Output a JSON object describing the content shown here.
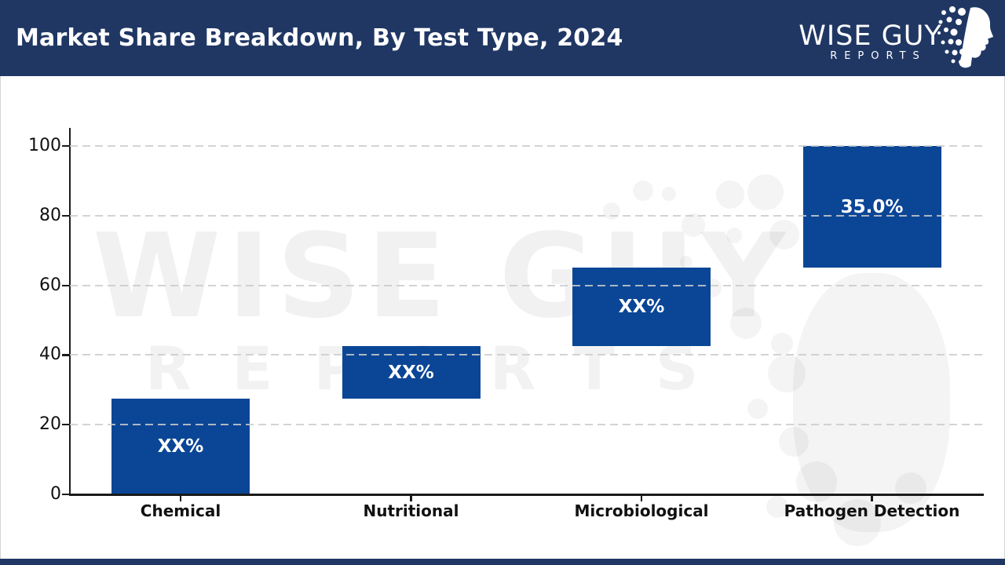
{
  "header": {
    "title": "Market Share Breakdown, By Test Type, 2024",
    "bg_color": "#203764",
    "logo": {
      "line1": "WISE GUY",
      "line2": "REPORTS"
    }
  },
  "watermark": {
    "line1": "WISE GUY",
    "line2": "REPORTS"
  },
  "chart_data": {
    "type": "bar",
    "subtype": "waterfall",
    "title": "Market Share Breakdown, By Test Type, 2024",
    "categories": [
      "Chemical",
      "Nutritional",
      "Microbiological",
      "Pathogen Detection"
    ],
    "segments": [
      {
        "category": "Chemical",
        "start": 0,
        "end": 27.5,
        "label": "XX%"
      },
      {
        "category": "Nutritional",
        "start": 27.5,
        "end": 42.5,
        "label": "XX%"
      },
      {
        "category": "Microbiological",
        "start": 42.5,
        "end": 65,
        "label": "XX%"
      },
      {
        "category": "Pathogen Detection",
        "start": 65,
        "end": 100,
        "label": "35.0%"
      }
    ],
    "xlabel": "",
    "ylabel": "",
    "ylim": [
      0,
      100
    ],
    "yticks": [
      0,
      20,
      40,
      60,
      80,
      100
    ],
    "grid": "horizontal-dashed-over-bars",
    "legend": "none",
    "bar_color": "#0b4696",
    "bar_label_color": "#ffffff",
    "axis_color": "#1a1a1a",
    "gridline_color": "#cbcbcb"
  }
}
